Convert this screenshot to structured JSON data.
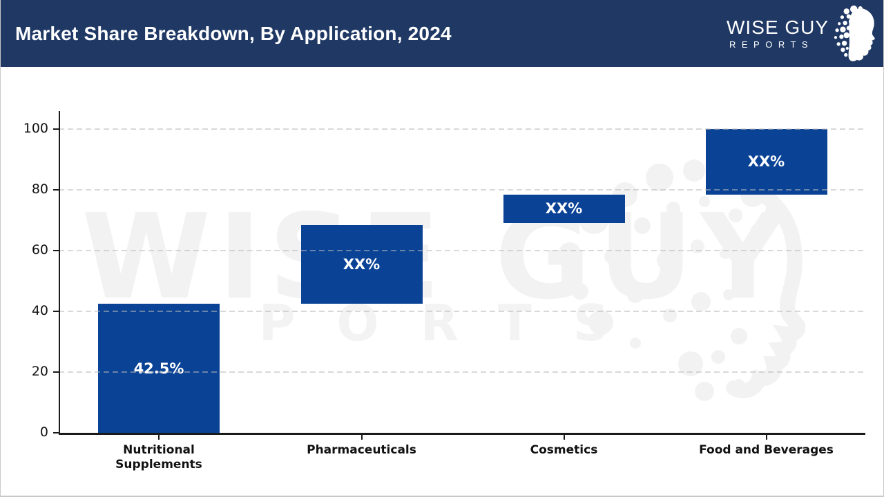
{
  "header": {
    "title": "Market Share Breakdown, By Application, 2024",
    "bg_color": "#1f3864",
    "logo": {
      "name": "WISE GUY",
      "sub": "REPORTS"
    }
  },
  "watermark": {
    "line1": "WISE GUY",
    "line2": "REPORTS"
  },
  "chart_data": {
    "type": "bar",
    "subtype": "waterfall",
    "title": "Market Share Breakdown, By Application, 2024",
    "categories": [
      "Nutritional\nSupplements",
      "Pharmaceuticals",
      "Cosmetics",
      "Food and Beverages"
    ],
    "series": [
      {
        "category": "Nutritional Supplements",
        "start": 0,
        "end": 42.5,
        "label": "42.5%"
      },
      {
        "category": "Pharmaceuticals",
        "start": 42.5,
        "end": 68.5,
        "label": "XX%"
      },
      {
        "category": "Cosmetics",
        "start": 69,
        "end": 78.5,
        "label": "XX%"
      },
      {
        "category": "Food and Beverages",
        "start": 78.5,
        "end": 100,
        "label": "XX%"
      }
    ],
    "yticks": [
      0,
      20,
      40,
      60,
      80,
      100
    ],
    "ylim": [
      0,
      105.5
    ],
    "xlabel": "",
    "ylabel": "",
    "bar_color": "#0a4296",
    "bar_label_color": "#ffffff",
    "grid": {
      "axis": "y",
      "style": "dashed",
      "color": "#dcdcdc"
    },
    "legend": null
  },
  "colors": {
    "header_bg": "#1f3864",
    "bar": "#0a4296",
    "axis": "#1a1a1a",
    "tick_text": "#111111",
    "watermark": "#f2f2f2",
    "frame_border": "#c9c9c9"
  }
}
